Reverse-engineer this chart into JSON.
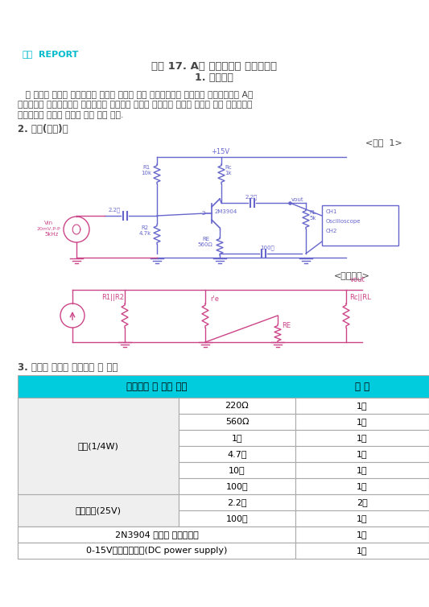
{
  "title_main": "실험 17. A급 공동이미터 전력증폭기",
  "title_sub": "1. 실험목적",
  "header_label_kor": "결과",
  "header_label_eng": "REPORT",
  "body_line1": " 이 실험의 목적은 입력신호의 한주기 전체에 걸쳐 컬렉터전류가 흐르도록 바이어스되는 A급",
  "body_line2": "공동이미터 전력증폭기의 동작특성을 알아보고 이러한 증폭기의 입력의 변화에 따라 출력파형이",
  "body_line3": "클리핑되는 현상을 분석해 보는 곳에 있다.",
  "section2": "2. 배선(회로)도",
  "figure_label": "<그림  1>",
  "equiv_label": "<등가회로>",
  "section3": "3. 실험에 사용된 소요부품 및 장비",
  "table_header_col1": "소요부품 및 장비 이름",
  "table_header_col2": "갯 수",
  "table_rows": [
    [
      "저항(1/4W)",
      "220Ω",
      "1개"
    ],
    [
      "저항(1/4W)",
      "560Ω",
      "1개"
    ],
    [
      "저항(1/4W)",
      "1㏀",
      "1개"
    ],
    [
      "저항(1/4W)",
      "4.7㏀",
      "1개"
    ],
    [
      "저항(1/4W)",
      "10㏀",
      "1개"
    ],
    [
      "저항(1/4W)",
      "100㏀",
      "1개"
    ],
    [
      "캐패시터(25V)",
      "2.2㎌",
      "2개"
    ],
    [
      "캐패시터(25V)",
      "100㎌",
      "1개"
    ],
    [
      "2N3904 실리콘 트랜지스터",
      "",
      "1개"
    ],
    [
      "0-15V직유전원장치(DC power supply)",
      "",
      "1대"
    ]
  ],
  "cyan_color": "#00CCDD",
  "report_color": "#00BBCC",
  "circuit_color_blue": "#6666CC",
  "circuit_color_pink": "#CC4488",
  "circuit_color_dark": "#CC44AA",
  "bg_color": "#FFFFFF",
  "text_color": "#444444",
  "table_header_color": "#00CCDD",
  "table_header_text": "#000000",
  "table_border": "#AAAAAA"
}
